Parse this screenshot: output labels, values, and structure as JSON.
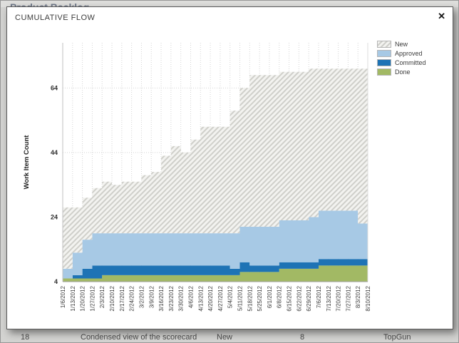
{
  "background": {
    "top_text": "Product Backlog",
    "bottom_row": {
      "id": "18",
      "title": "Condensed view of the scorecard",
      "state": "New",
      "effort": "8",
      "area": "TopGun"
    }
  },
  "modal": {
    "title": "CUMULATIVE FLOW",
    "close_icon": "✕"
  },
  "chart_data": {
    "type": "area",
    "stacked": true,
    "interpolation": "step-after",
    "title": "CUMULATIVE FLOW",
    "xlabel": "",
    "ylabel": "Work Item Count",
    "yticks": [
      4,
      24,
      44,
      64
    ],
    "ylim": [
      4,
      78
    ],
    "grid": true,
    "legend_position": "right-top",
    "x": [
      "1/6/2012",
      "1/13/2012",
      "1/20/2012",
      "1/27/2012",
      "2/3/2012",
      "2/10/2012",
      "2/17/2012",
      "2/24/2012",
      "3/2/2012",
      "3/9/2012",
      "3/16/2012",
      "3/23/2012",
      "3/30/2012",
      "4/6/2012",
      "4/13/2012",
      "4/20/2012",
      "4/27/2012",
      "5/4/2012",
      "5/11/2012",
      "5/18/2012",
      "5/25/2012",
      "6/1/2012",
      "6/8/2012",
      "6/15/2012",
      "6/22/2012",
      "6/29/2012",
      "7/6/2012",
      "7/13/2012",
      "7/20/2012",
      "7/27/2012",
      "8/3/2012",
      "8/10/2012"
    ],
    "series": [
      {
        "name": "Done",
        "color": "#a2b964",
        "values": [
          5,
          5,
          5,
          5,
          6,
          6,
          6,
          6,
          6,
          6,
          6,
          6,
          6,
          6,
          6,
          6,
          6,
          6,
          7,
          7,
          7,
          7,
          8,
          8,
          8,
          8,
          9,
          9,
          9,
          9,
          9,
          12
        ]
      },
      {
        "name": "Committed",
        "color": "#1e73b5",
        "values": [
          0,
          1,
          3,
          4,
          3,
          3,
          3,
          3,
          3,
          3,
          3,
          3,
          3,
          3,
          3,
          3,
          3,
          2,
          3,
          2,
          2,
          2,
          2,
          2,
          2,
          2,
          2,
          2,
          2,
          2,
          2,
          9
        ]
      },
      {
        "name": "Approved",
        "color": "#a7c9e5",
        "values": [
          3,
          7,
          9,
          10,
          10,
          10,
          10,
          10,
          10,
          10,
          10,
          10,
          10,
          10,
          10,
          10,
          10,
          11,
          11,
          12,
          12,
          12,
          13,
          13,
          13,
          14,
          15,
          15,
          15,
          15,
          11,
          1
        ]
      },
      {
        "name": "New",
        "color": "hatch",
        "values": [
          19,
          14,
          13,
          14,
          16,
          15,
          16,
          16,
          18,
          19,
          24,
          27,
          25,
          29,
          33,
          33,
          33,
          38,
          43,
          47,
          47,
          47,
          46,
          46,
          46,
          46,
          44,
          44,
          44,
          44,
          48,
          55
        ]
      }
    ],
    "legend": [
      {
        "label": "New",
        "swatch": "hatch"
      },
      {
        "label": "Approved",
        "swatch": "#a7c9e5"
      },
      {
        "label": "Committed",
        "swatch": "#1e73b5"
      },
      {
        "label": "Done",
        "swatch": "#a2b964"
      }
    ]
  }
}
